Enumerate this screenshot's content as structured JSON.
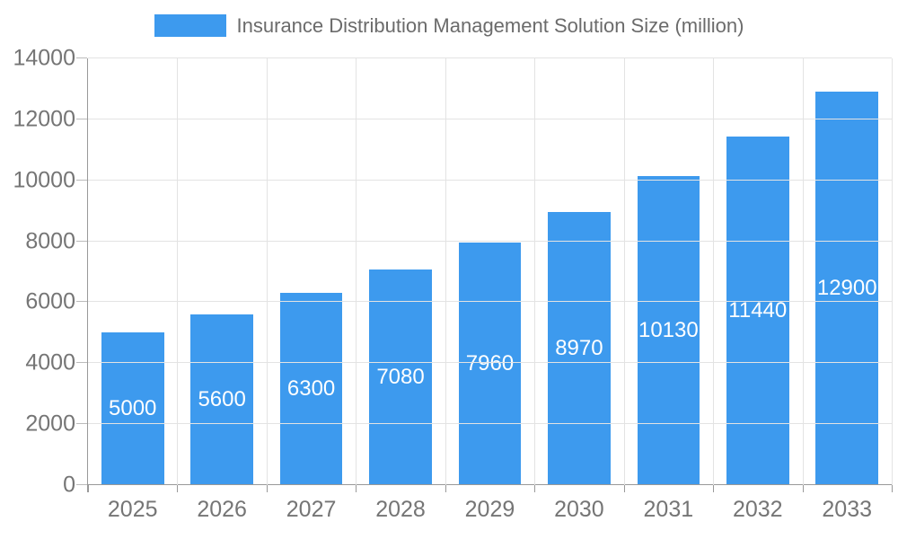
{
  "legend": {
    "label": "Insurance Distribution Management Solution Size (million)"
  },
  "chart_data": {
    "type": "bar",
    "title": "Insurance Distribution Management Solution Size (million)",
    "series": [
      {
        "name": "Insurance Distribution Management Solution Size (million)",
        "values": [
          5000,
          5600,
          6300,
          7080,
          7960,
          8970,
          10130,
          11440,
          12900
        ]
      }
    ],
    "categories": [
      "2025",
      "2026",
      "2027",
      "2028",
      "2029",
      "2030",
      "2031",
      "2032",
      "2033"
    ],
    "xlabel": "",
    "ylabel": "",
    "ylim": [
      0,
      14000
    ],
    "yticks": [
      0,
      2000,
      4000,
      6000,
      8000,
      10000,
      12000,
      14000
    ],
    "grid": true,
    "legend_position": "top",
    "bar_labels_inside": true,
    "colors": {
      "bar": "#3D9AEE",
      "grid": "#E3E3E3",
      "axis": "#999999",
      "tick": "#BBBBBB",
      "axis_label": "#757575",
      "legend_text": "#6B6B6B",
      "bar_label": "#FFFFFF",
      "background": "#FFFFFF"
    }
  }
}
